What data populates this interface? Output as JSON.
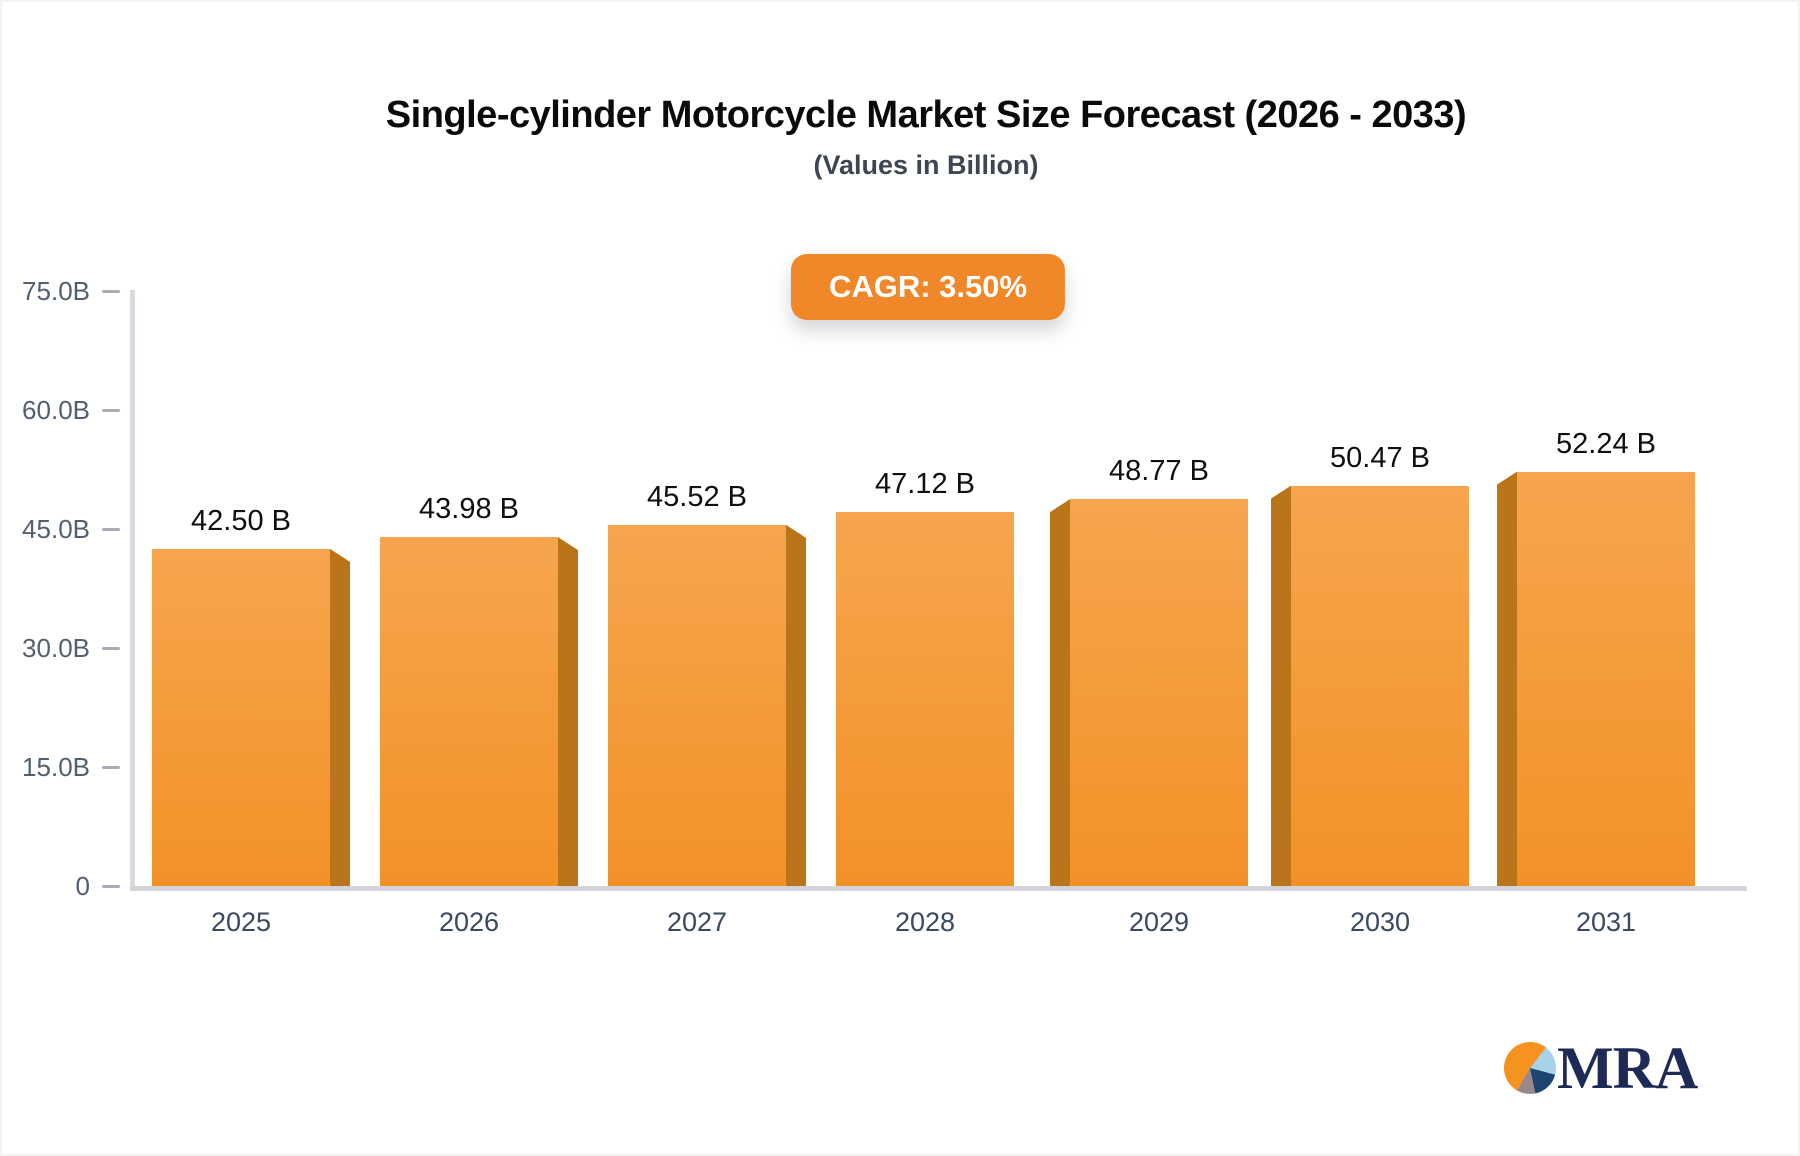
{
  "header": {
    "title": "Single-cylinder Motorcycle Market Size Forecast (2026 - 2033)",
    "subtitle": "(Values in Billion)"
  },
  "badge": {
    "label": "CAGR: 3.50%"
  },
  "logo": {
    "icon": "pie-chart-icon",
    "text": "MRA"
  },
  "chart_data": {
    "type": "bar",
    "title": "Single-cylinder Motorcycle Market Size Forecast (2026 - 2033)",
    "subtitle": "(Values in Billion)",
    "annotation": "CAGR: 3.50%",
    "categories": [
      "2025",
      "2026",
      "2027",
      "2028",
      "2029",
      "2030",
      "2031"
    ],
    "values": [
      42.5,
      43.98,
      45.52,
      47.12,
      48.77,
      50.47,
      52.24
    ],
    "value_labels": [
      "42.50 B",
      "43.98 B",
      "45.52 B",
      "47.12 B",
      "48.77 B",
      "50.47 B",
      "52.24 B"
    ],
    "xlabel": "",
    "ylabel": "",
    "ylim": [
      0,
      75
    ],
    "ytick_step": 15,
    "yticks": [
      {
        "label": "75.0B",
        "value": 75
      },
      {
        "label": "60.0B",
        "value": 60
      },
      {
        "label": "45.0B",
        "value": 45
      },
      {
        "label": "30.0B",
        "value": 30
      },
      {
        "label": "15.0B",
        "value": 15
      },
      {
        "label": "0",
        "value": 0
      }
    ],
    "grid": false,
    "legend": false,
    "bar_style": "3d-beveled-orange"
  },
  "colors": {
    "bar_face_top": "#f6a54e",
    "bar_face_bottom": "#f39127",
    "bar_side": "#ba7419",
    "badge_background": "#f0882a",
    "badge_text": "#ffffff",
    "axis_line": "#d6dadf",
    "tick_dash": "#a6adb6",
    "y_label": "#535f6f",
    "x_label": "#3a4961",
    "value_label": "#0d0f12",
    "title": "#0a0a0a",
    "subtitle": "#3e4653",
    "logo_navy": "#1d2a56",
    "logo_orange": "#f6921e",
    "logo_light_blue": "#a7d3ea",
    "logo_dark_blue": "#1d4570",
    "logo_gray": "#99898c"
  }
}
